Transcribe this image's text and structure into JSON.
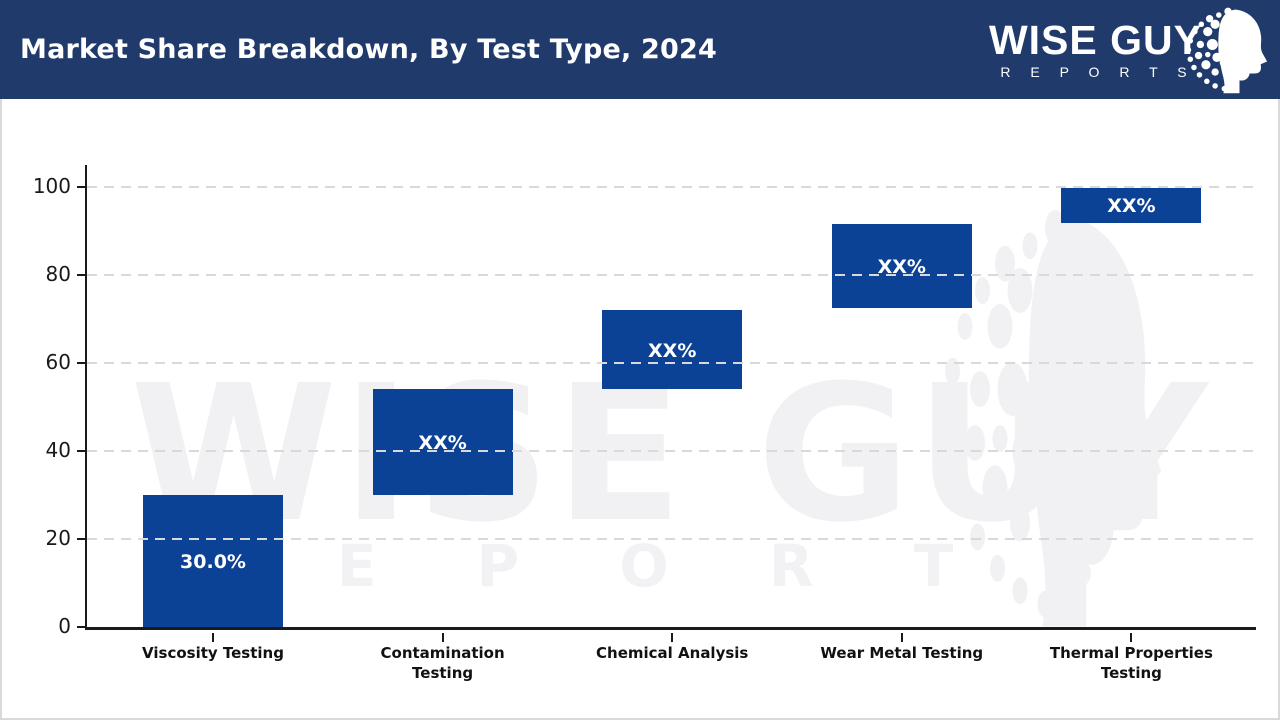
{
  "header": {
    "title": "Market Share Breakdown, By Test Type, 2024",
    "logo": {
      "line1": "WISE GUY",
      "line2": "R E P O R T S",
      "face_icon": "dotted-head-profile-icon"
    }
  },
  "watermark": {
    "line1": "WISE GUY",
    "line2": "R E P O R T S",
    "face_icon": "dotted-head-profile-icon"
  },
  "colors": {
    "header_bg": "#203A6B",
    "bar": "#0B4296",
    "bar_label_text": "#FFFFFF",
    "grid": "#D9D9D9",
    "axis": "#1A1A1A",
    "watermark": "#F1F1F4"
  },
  "chart_data": {
    "type": "bar",
    "subtype": "floating-waterfall",
    "title": "Market Share Breakdown, By Test Type, 2024",
    "categories": [
      "Viscosity Testing",
      "Contamination\nTesting",
      "Chemical Analysis",
      "Wear Metal Testing",
      "Thermal Properties\nTesting"
    ],
    "series": [
      {
        "name": "Market Share",
        "segments": [
          {
            "category": "Viscosity Testing",
            "from": 0,
            "to": 30,
            "label": "30.0%"
          },
          {
            "category": "Contamination Testing",
            "from": 30,
            "to": 54,
            "label": "XX%"
          },
          {
            "category": "Chemical Analysis",
            "from": 54,
            "to": 72,
            "label": "XX%"
          },
          {
            "category": "Wear Metal Testing",
            "from": 72.5,
            "to": 91.5,
            "label": "XX%"
          },
          {
            "category": "Thermal Properties Testing",
            "from": 91.8,
            "to": 99.8,
            "label": "XX%"
          }
        ]
      }
    ],
    "xlabel": "",
    "ylabel": "",
    "ylim": [
      0,
      105
    ],
    "yticks": [
      0,
      20,
      40,
      60,
      80,
      100
    ],
    "grid": "horizontal-dashed",
    "legend": "none"
  }
}
